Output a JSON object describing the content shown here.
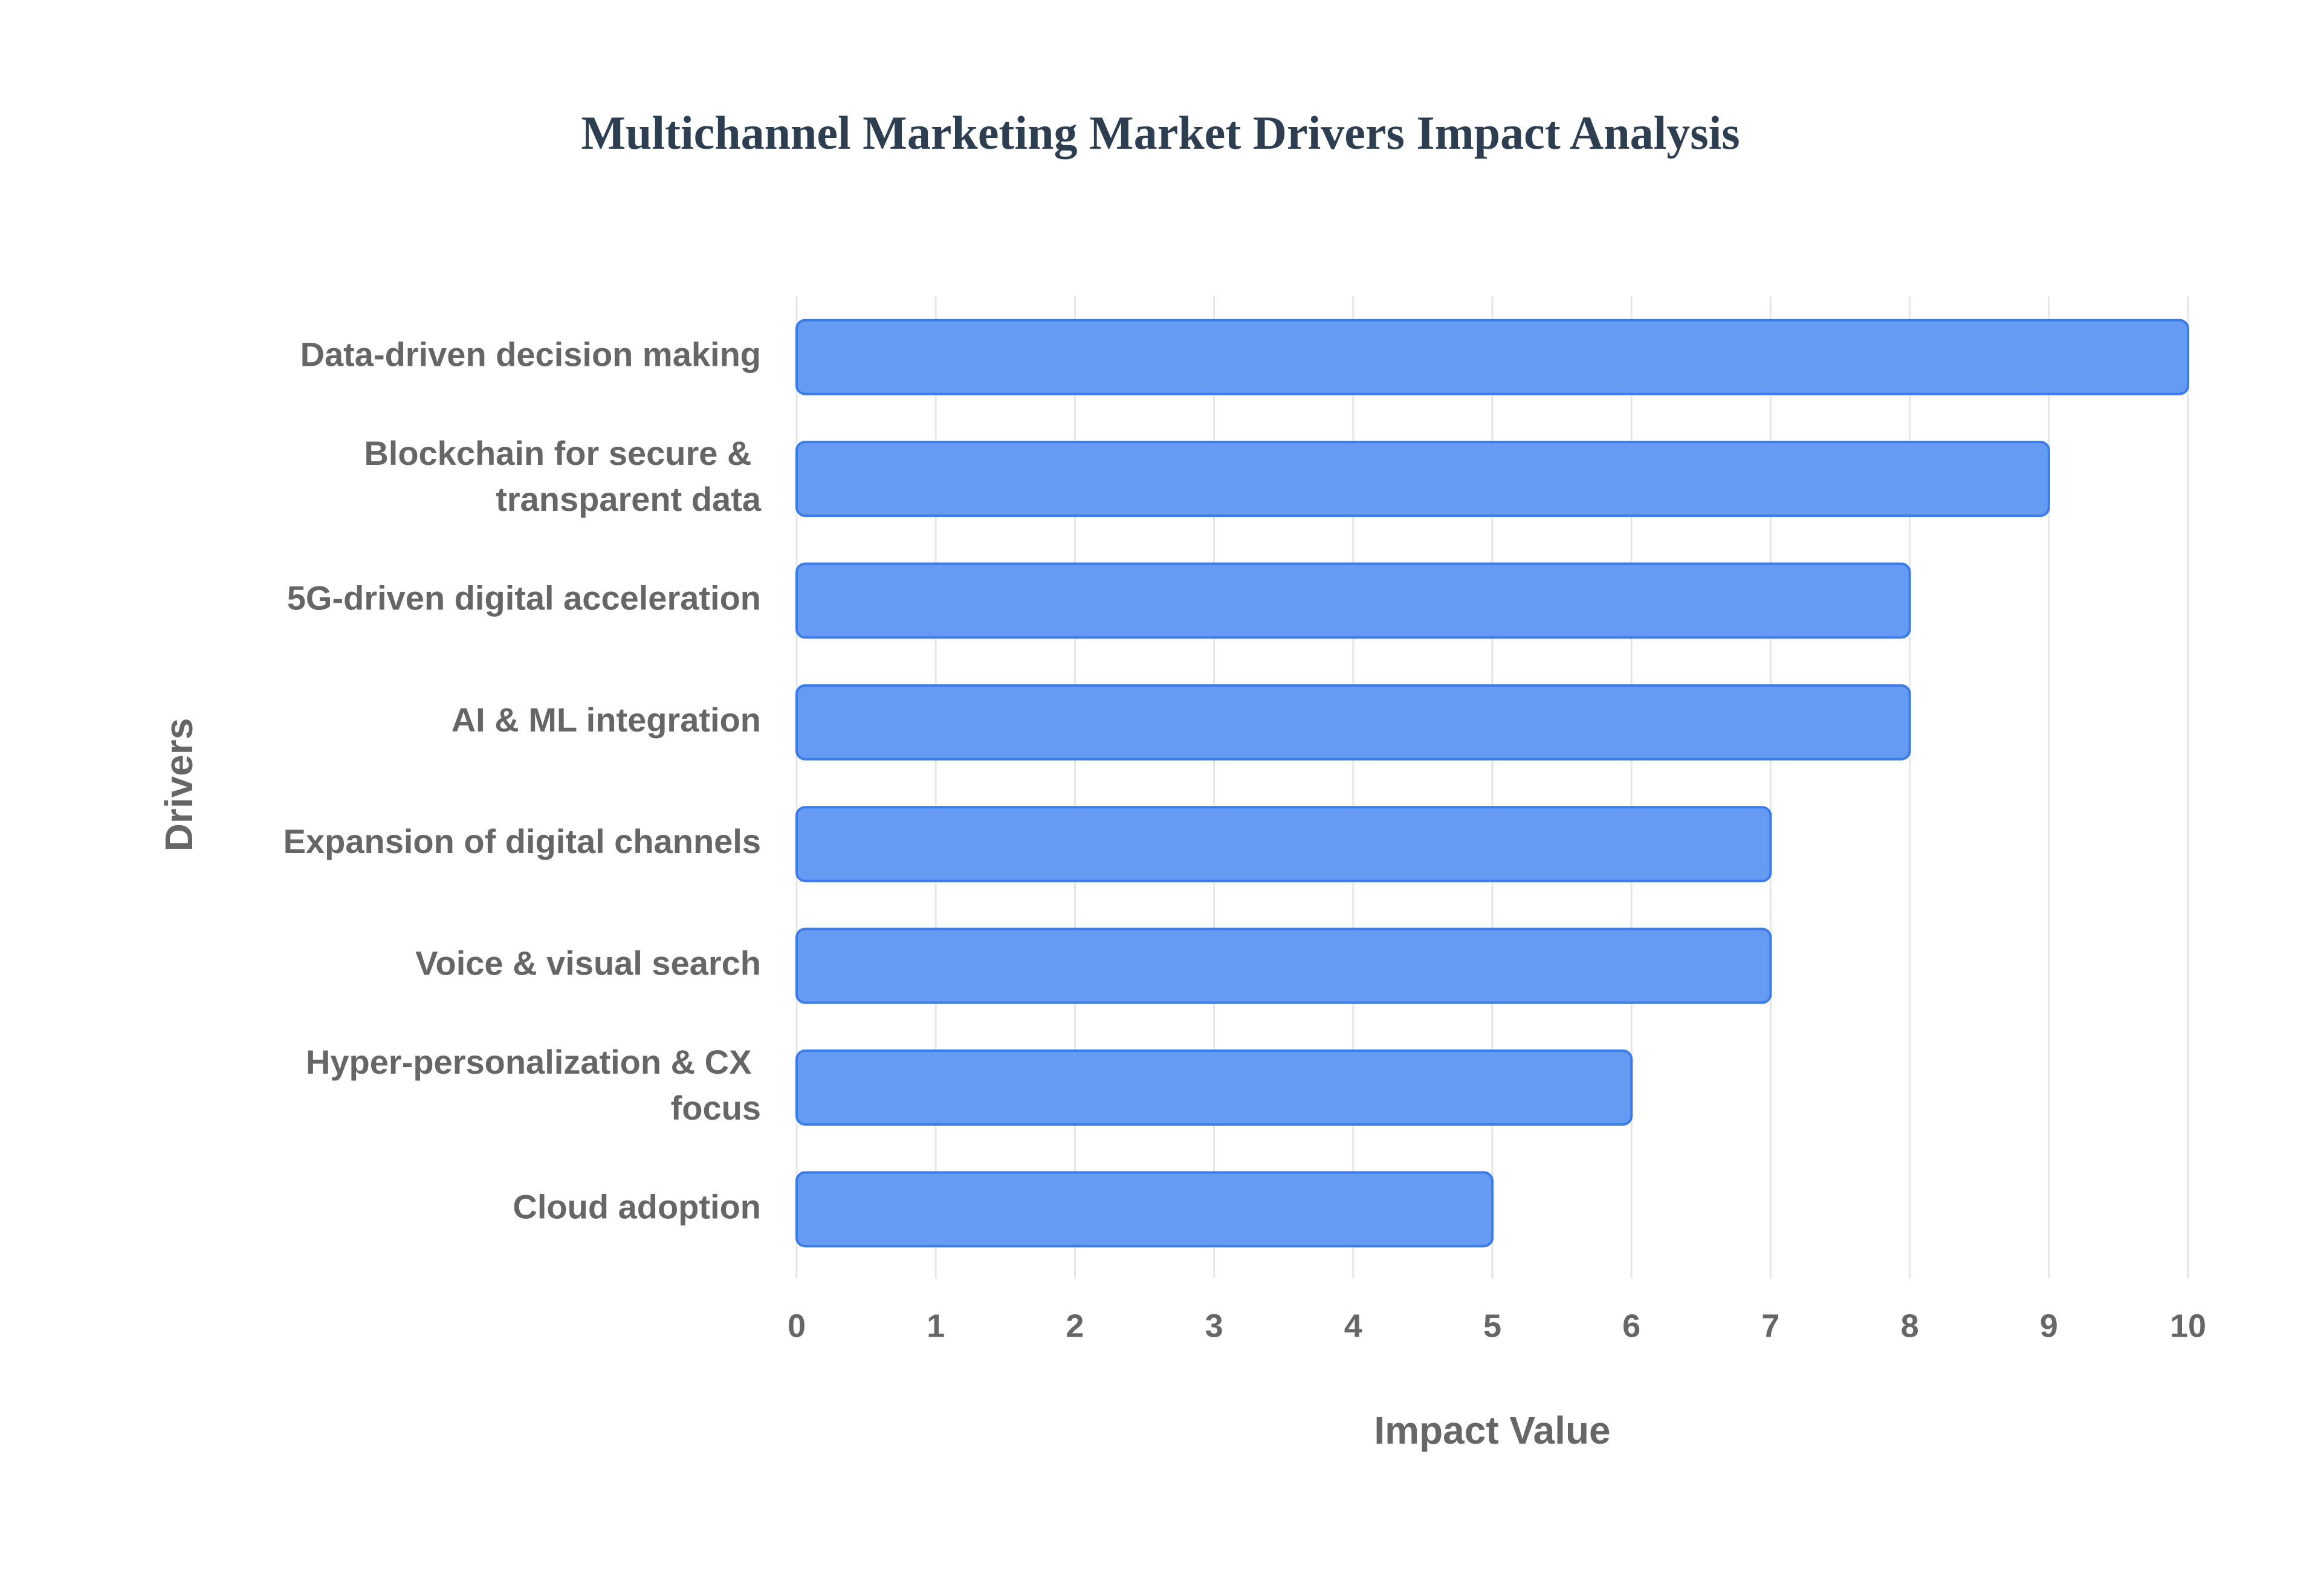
{
  "chart_data": {
    "type": "hbar",
    "title": "Multichannel Marketing Market Drivers Impact Analysis",
    "x_label": "Impact Value",
    "y_label": "Drivers",
    "categories": [
      "Data-driven decision making",
      "Blockchain for secure & transparent data",
      "5G-driven digital acceleration",
      "AI & ML integration",
      "Expansion of digital channels",
      "Voice & visual search",
      "Hyper-personalization & CX focus",
      "Cloud adoption"
    ],
    "values": [
      10,
      9,
      8,
      8,
      7,
      7,
      6,
      5
    ],
    "color": "#6399f4",
    "edge_color": "#3b7ce9",
    "xlim": [
      0,
      10
    ],
    "xticks": [
      0,
      1,
      2,
      3,
      4,
      5,
      6,
      7,
      8,
      9,
      10
    ],
    "grid": true
  }
}
